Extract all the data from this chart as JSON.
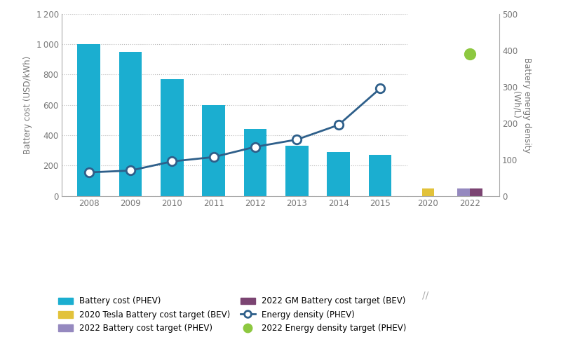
{
  "bar_years": [
    2008,
    2009,
    2010,
    2011,
    2012,
    2013,
    2014,
    2015
  ],
  "bar_values": [
    1000,
    950,
    770,
    600,
    440,
    330,
    290,
    270
  ],
  "bar_color": "#1BAED0",
  "energy_density_values": [
    65,
    70,
    95,
    107,
    135,
    155,
    195,
    295
  ],
  "energy_density_color": "#2E5F8A",
  "target_2020_bar_value": 50,
  "target_2020_bar_color": "#E2C23A",
  "target_2022_phev_value": 50,
  "target_2022_phev_color": "#9589BF",
  "target_2022_gm_value": 50,
  "target_2022_gm_color": "#7B4472",
  "energy_density_2022_target": 390,
  "energy_density_2022_target_color": "#8DC840",
  "ylabel_left": "Battery cost (USD/kWh)",
  "ylabel_right": "Battery energy density\n(Wh/L)",
  "ylim_left": [
    0,
    1200
  ],
  "ylim_right": [
    0,
    500
  ],
  "yticks_left": [
    0,
    200,
    400,
    600,
    800,
    1000,
    1200
  ],
  "yticks_right": [
    0,
    100,
    200,
    300,
    400,
    500
  ],
  "legend_items": [
    {
      "label": "Battery cost (PHEV)",
      "type": "bar",
      "color": "#1BAED0"
    },
    {
      "label": "2020 Tesla Battery cost target (BEV)",
      "type": "bar",
      "color": "#E2C23A"
    },
    {
      "label": "2022 Battery cost target (PHEV)",
      "type": "bar",
      "color": "#9589BF"
    },
    {
      "label": "2022 GM Battery cost target (BEV)",
      "type": "bar",
      "color": "#7B4472"
    },
    {
      "label": "Energy density (PHEV)",
      "type": "line",
      "color": "#2E5F8A"
    },
    {
      "label": "2022 Energy density target (PHEV)",
      "type": "scatter",
      "color": "#8DC840"
    }
  ],
  "background_color": "#FFFFFF",
  "grid_color": "#BBBBBB",
  "spine_color": "#AAAAAA",
  "tick_label_color": "#777777",
  "axis_label_color": "#777777"
}
